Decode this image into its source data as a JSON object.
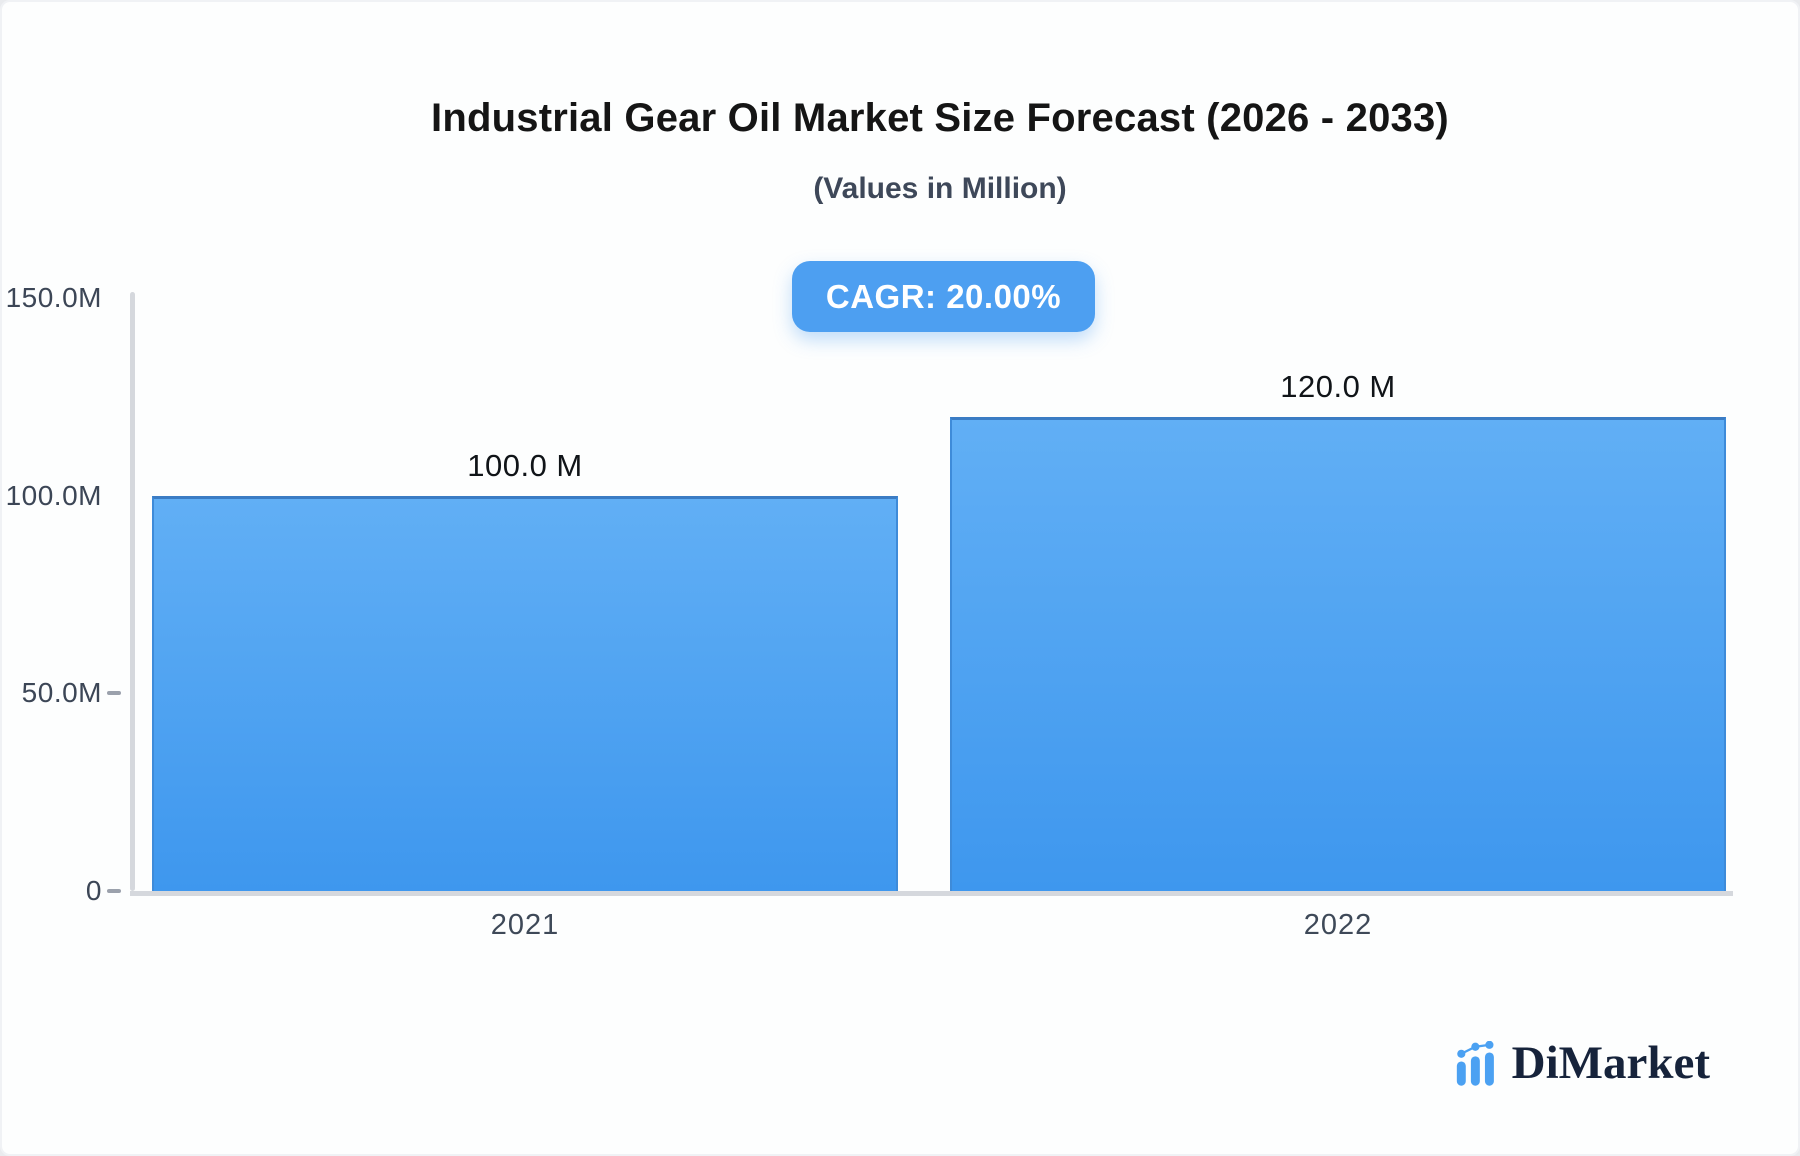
{
  "chart_data": {
    "type": "bar",
    "title": "Industrial Gear Oil Market Size Forecast (2026 - 2033)",
    "subtitle": "(Values in Million)",
    "badge": "CAGR: 20.00%",
    "categories": [
      "2021",
      "2022"
    ],
    "values": [
      100.0,
      120.0
    ],
    "value_labels": [
      "100.0 M",
      "120.0 M"
    ],
    "unit": "Million",
    "ylim": [
      0,
      150
    ],
    "yticks": [
      {
        "label": "150.0M",
        "value": 150
      },
      {
        "label": "100.0M",
        "value": 100
      },
      {
        "label": "50.0M",
        "value": 50
      },
      {
        "label": "0",
        "value": 0
      }
    ],
    "grid": false,
    "legend": "none",
    "colors": {
      "bar_fill_top": "#61AFF5",
      "bar_fill_bottom": "#3E97EE",
      "bar_border": "#3B7CC4",
      "badge_bg": "#4D9FF1",
      "badge_text": "#FFFFFF",
      "axis_line": "#D5D8DD",
      "title_text": "#151515",
      "label_text": "#3C4656"
    }
  },
  "branding": {
    "logo_text": "DiMarket",
    "logo_icon": "mini-bar-chart-icon",
    "logo_text_color": "#16233B",
    "logo_icon_color": "#4BA1F2"
  }
}
